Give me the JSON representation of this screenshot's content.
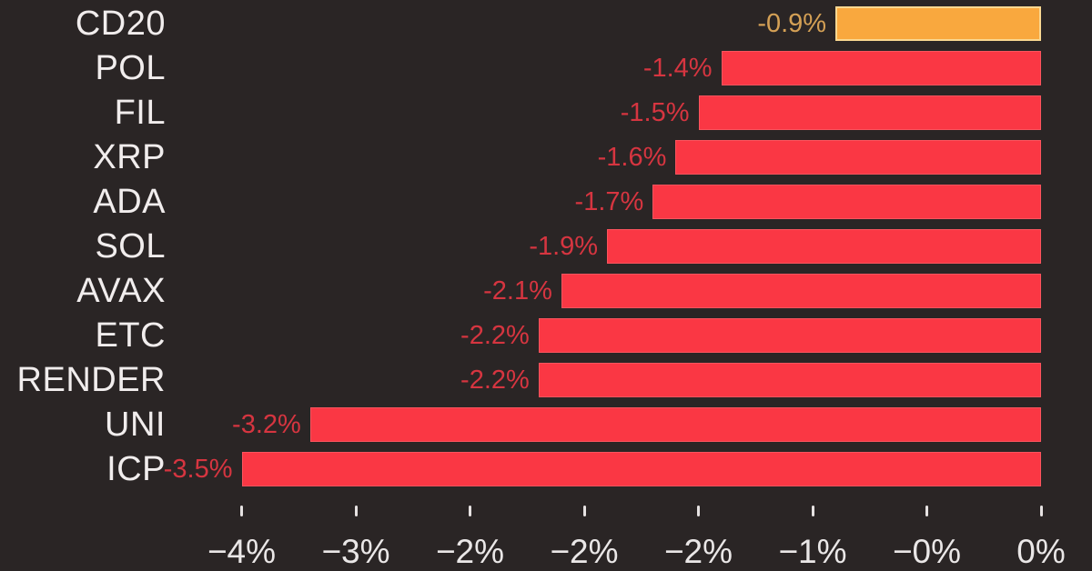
{
  "chart_data": {
    "type": "bar",
    "orientation": "horizontal",
    "title": "",
    "categories": [
      "CD20",
      "POL",
      "FIL",
      "XRP",
      "ADA",
      "SOL",
      "AVAX",
      "ETC",
      "RENDER",
      "UNI",
      "ICP"
    ],
    "values": [
      -0.9,
      -1.4,
      -1.5,
      -1.6,
      -1.7,
      -1.9,
      -2.1,
      -2.2,
      -2.2,
      -3.2,
      -3.5
    ],
    "value_labels": [
      "-0.9%",
      "-1.4%",
      "-1.5%",
      "-1.6%",
      "-1.7%",
      "-1.9%",
      "-2.1%",
      "-2.2%",
      "-2.2%",
      "-3.2%",
      "-3.5%"
    ],
    "highlight_category": "CD20",
    "xlabel": "",
    "ylabel": "",
    "xlim": [
      -3.5,
      0
    ],
    "grid": false,
    "legend": false,
    "x_ticks": [
      {
        "value": -3.5,
        "label": "−4%"
      },
      {
        "value": -3.0,
        "label": "−3%"
      },
      {
        "value": -2.5,
        "label": "−2%"
      },
      {
        "value": -2.0,
        "label": "−2%"
      },
      {
        "value": -1.5,
        "label": "−2%"
      },
      {
        "value": -1.0,
        "label": "−1%"
      },
      {
        "value": -0.5,
        "label": "−0%"
      },
      {
        "value": 0.0,
        "label": "0%"
      }
    ],
    "colors": {
      "background": "#2a2525",
      "bar_negative": "#fa3744",
      "bar_highlight": "#f9a83e",
      "value_label_negative": "#d63540",
      "value_label_highlight": "#d4a055",
      "category_label": "#f1eded",
      "tick_label": "#eae7e7",
      "tick_mark": "#e6e2e2"
    }
  }
}
